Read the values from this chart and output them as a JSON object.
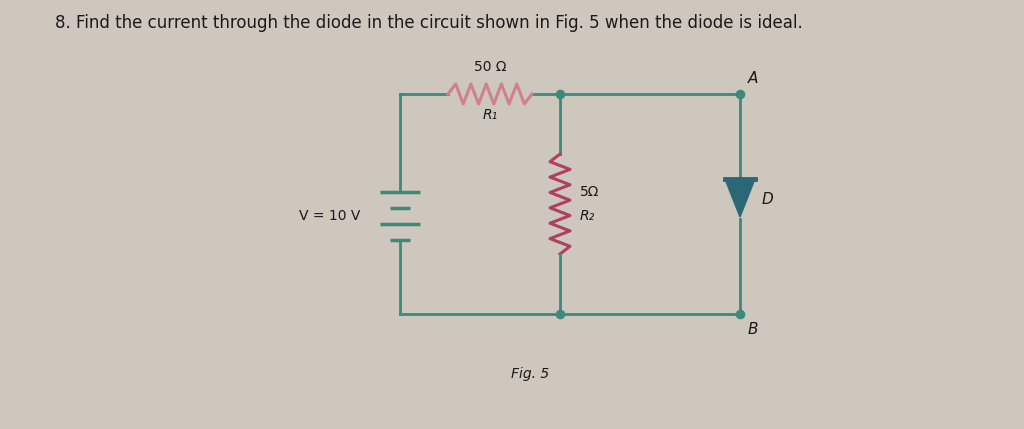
{
  "title_text": "8. Find the current through the diode in the circuit shown in Fig. 5 when the diode is ideal.",
  "fig_label": "Fig. 5",
  "bg_color": "#cdc7be",
  "wire_color": "#3d8a7a",
  "resistor_R1_color": "#d08090",
  "resistor_R2_color": "#b04060",
  "diode_color": "#2a6878",
  "text_color": "#1a1a1a",
  "label_R1": "R₁",
  "label_R2": "R₂",
  "label_50": "50 Ω",
  "label_5": "5Ω",
  "label_V": "V = 10 V",
  "label_A": "A",
  "label_B": "B",
  "label_D": "D",
  "title_fontsize": 12,
  "fig_label_fontsize": 10
}
